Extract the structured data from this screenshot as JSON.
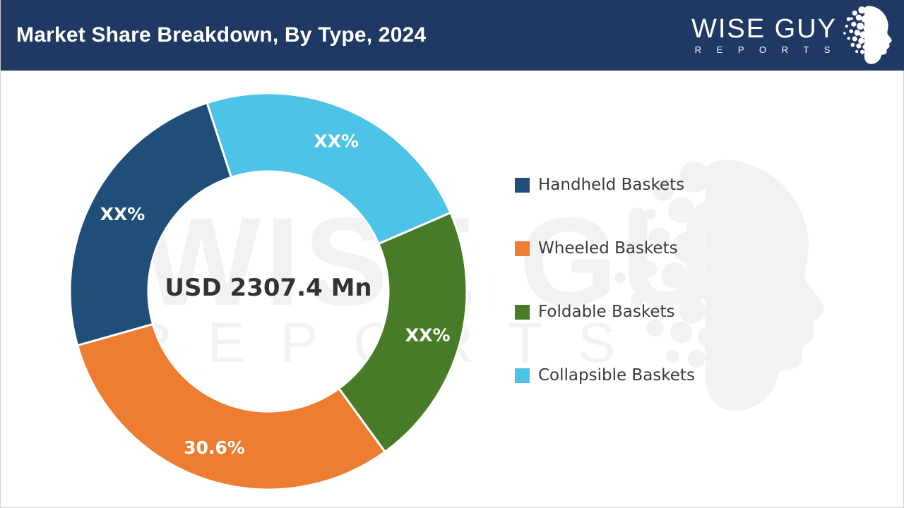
{
  "header": {
    "title": "Market Share Breakdown, By Type, 2024",
    "background_color": "#1F3864",
    "logo": {
      "line1": "WISE GUY",
      "line2": "R E P O R T S"
    }
  },
  "watermark": {
    "line1": "WISE GUY",
    "line2": "REPORTS"
  },
  "chart_data": {
    "type": "pie",
    "subtype": "donut",
    "title": "Market Share Breakdown, By Type, 2024",
    "center_label": "USD 2307.4 Mn",
    "legend_position": "right",
    "start_angle_deg_from_top": 342,
    "direction": "counterclockwise",
    "segments": [
      {
        "label": "Handheld Baskets",
        "value_pct": 24.4,
        "display_label": "XX%",
        "color": "#1F4E79"
      },
      {
        "label": "Wheeled Baskets",
        "value_pct": 30.6,
        "display_label": "30.6%",
        "color": "#ED7D31"
      },
      {
        "label": "Foldable Baskets",
        "value_pct": 21.5,
        "display_label": "XX%",
        "color": "#477B28"
      },
      {
        "label": "Collapsible Baskets",
        "value_pct": 23.5,
        "display_label": "XX%",
        "color": "#4DC3E8"
      }
    ]
  }
}
